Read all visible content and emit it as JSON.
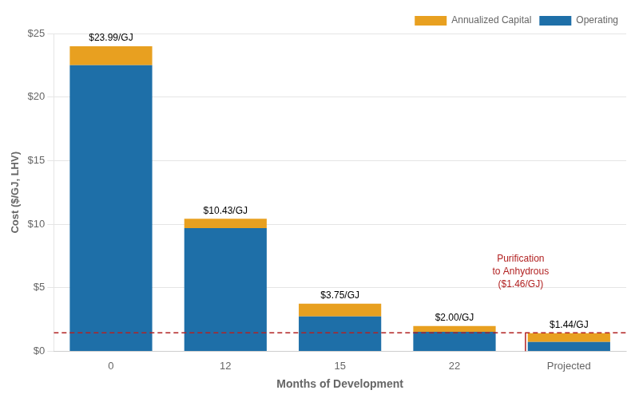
{
  "chart_data": {
    "type": "bar",
    "stacked": true,
    "categories": [
      "0",
      "12",
      "15",
      "22",
      "Projected"
    ],
    "series": [
      {
        "name": "Operating",
        "color": "#1e6fa8",
        "values": [
          22.5,
          9.7,
          2.75,
          1.55,
          0.75
        ]
      },
      {
        "name": "Annualized Capital",
        "color": "#e8a020",
        "values": [
          1.49,
          0.73,
          1.0,
          0.45,
          0.69
        ]
      }
    ],
    "annotations": [
      {
        "type": "text",
        "text": "$23.99/GJ",
        "x": "0",
        "y": 23.99
      },
      {
        "type": "text",
        "text": "$10.43/GJ",
        "x": "12",
        "y": 10.43
      },
      {
        "type": "text",
        "text": "$3.75/GJ",
        "x": "15",
        "y": 3.75
      },
      {
        "type": "text",
        "text": "$2.00/GJ",
        "x": "22",
        "y": 2.0
      },
      {
        "type": "text",
        "text": "$1.44/GJ",
        "x": "Projected",
        "y": 1.44
      },
      {
        "type": "hline",
        "y": 1.46,
        "text": "Purification\nto Anhydrous\n($1.46/GJ)",
        "color": "#b22222",
        "line_style": "dashed"
      }
    ],
    "xlabel": "Months of Development",
    "ylabel": "Cost ($/GJ, LHV)",
    "ylim": [
      0,
      25
    ],
    "yticks": [
      {
        "value": 0,
        "label": "$0"
      },
      {
        "value": 5,
        "label": "$5"
      },
      {
        "value": 10,
        "label": "$10"
      },
      {
        "value": 15,
        "label": "$15"
      },
      {
        "value": 20,
        "label": "$20"
      },
      {
        "value": 25,
        "label": "$25"
      }
    ],
    "grid": true,
    "legend": "upper right"
  }
}
